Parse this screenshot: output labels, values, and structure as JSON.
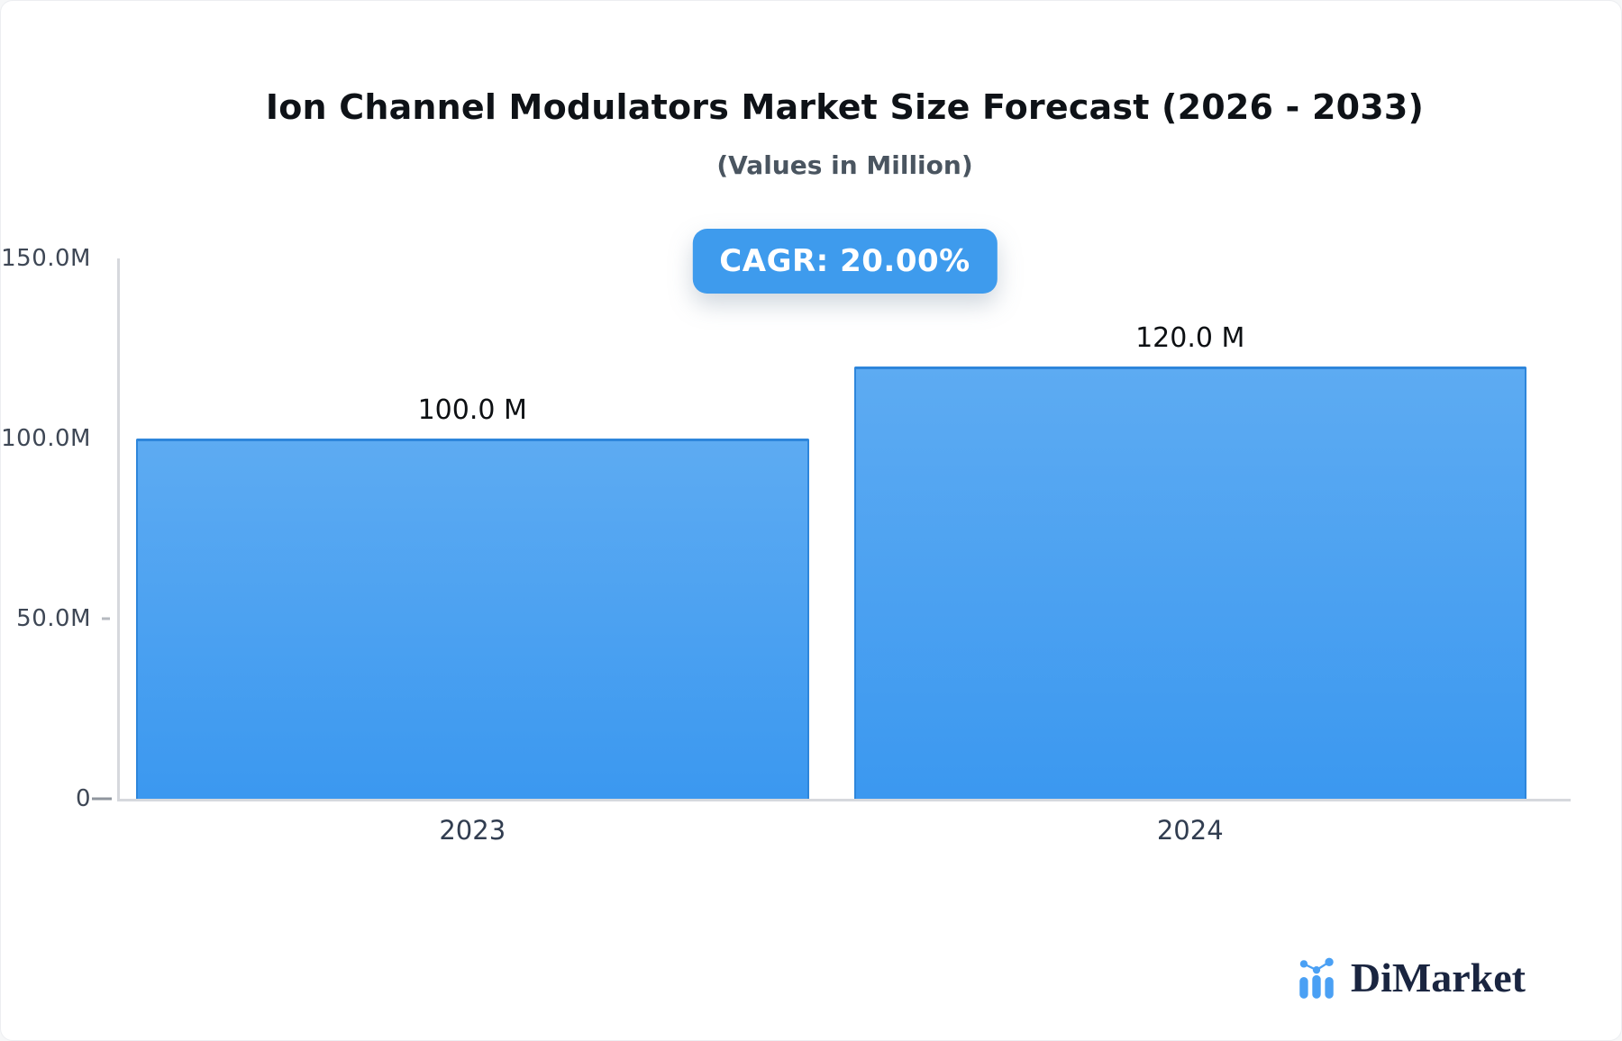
{
  "page": {
    "background": "#f6f7f8",
    "card_background": "#ffffff"
  },
  "header": {
    "title": "Ion Channel Modulators Market Size Forecast (2026 - 2033)",
    "subtitle": "(Values in Million)"
  },
  "badge": {
    "label": "CAGR: 20.00%",
    "background": "#3e9bed",
    "text_color": "#ffffff"
  },
  "chart_data": {
    "type": "bar",
    "title": "Ion Channel Modulators Market Size Forecast (2026 - 2033)",
    "subtitle": "(Values in Million)",
    "unit": "Million",
    "cagr": "20.00%",
    "categories": [
      "2023",
      "2024"
    ],
    "values": [
      100.0,
      120.0
    ],
    "value_labels": [
      "100.0 M",
      "120.0 M"
    ],
    "ylim": [
      0,
      150
    ],
    "yticks": [
      {
        "label": "150.0M",
        "value": 150,
        "tick": "none"
      },
      {
        "label": "100.0M",
        "value": 100,
        "tick": "none"
      },
      {
        "label": "50.0M",
        "value": 50,
        "tick": "short"
      },
      {
        "label": "0",
        "value": 0,
        "tick": "long"
      }
    ],
    "grid": false,
    "legend": "none",
    "bar_color_top": "#5dabf2",
    "bar_color_bottom": "#3b98f0",
    "bar_border_color": "#2e86db",
    "axis_color": "#d6d8dd"
  },
  "footer": {
    "brand": "DiMarket",
    "brand_color": "#1a2540",
    "icon": "bar-chart-logo-icon",
    "icon_color": "#4aa0f4"
  }
}
